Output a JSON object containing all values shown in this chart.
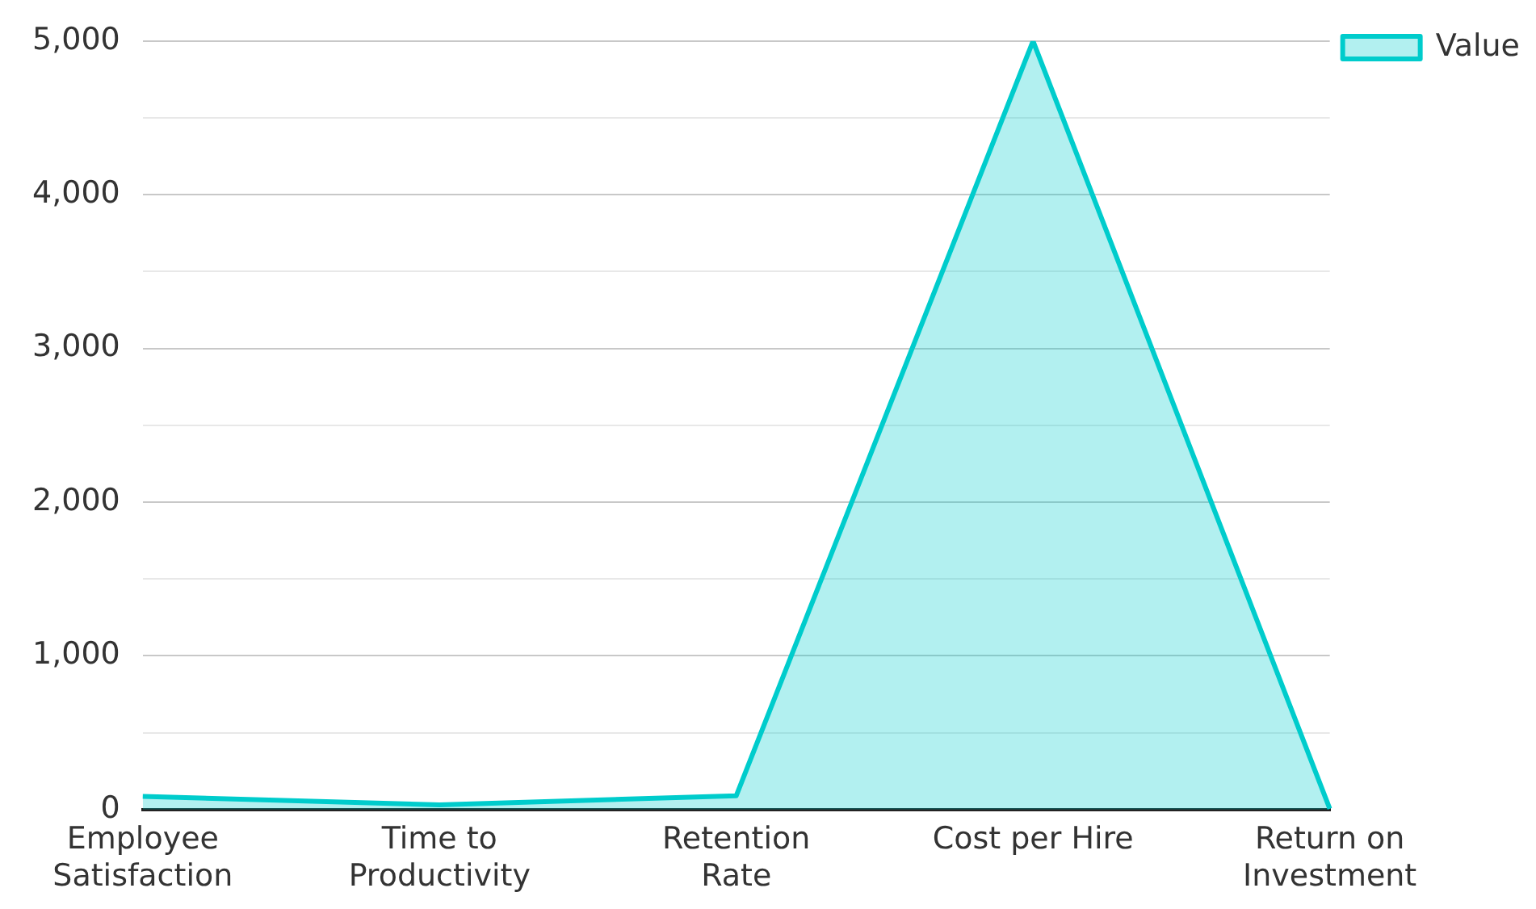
{
  "chart_data": {
    "type": "area",
    "categories": [
      "Employee Satisfaction",
      "Time to Productivity",
      "Retention Rate",
      "Cost per Hire",
      "Return on Investment"
    ],
    "series": [
      {
        "name": "Value",
        "color": "#00cccc",
        "values": [
          85,
          30,
          90,
          5000,
          5
        ]
      }
    ],
    "ylim": [
      0,
      5000
    ],
    "yticks": [
      0,
      {
        "value": 500,
        "label": null
      },
      {
        "value": 1000,
        "label": "1,000"
      },
      {
        "value": 1500,
        "label": null
      },
      {
        "value": 2000,
        "label": "2,000"
      },
      {
        "value": 2500,
        "label": null
      },
      {
        "value": 3000,
        "label": "3,000"
      },
      {
        "value": 3500,
        "label": null
      },
      {
        "value": 4000,
        "label": "4,000"
      },
      {
        "value": 4500,
        "label": null
      },
      {
        "value": 5000,
        "label": "5,000"
      }
    ],
    "grid": "y",
    "legend": "top right"
  }
}
